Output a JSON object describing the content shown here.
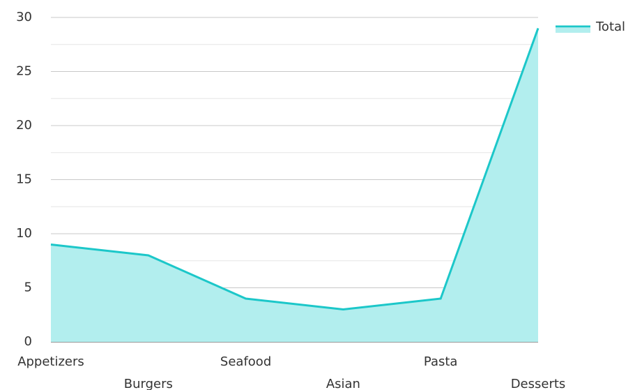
{
  "chart_data": {
    "type": "area",
    "categories": [
      "Appetizers",
      "Burgers",
      "Seafood",
      "Asian",
      "Pasta",
      "Desserts"
    ],
    "series": [
      {
        "name": "Total",
        "color": "#1cc7c9",
        "fill": "#b2eeee",
        "values": [
          9,
          8,
          4,
          3,
          4,
          29
        ]
      }
    ],
    "ylim": [
      0,
      30
    ],
    "yticks": [
      0,
      5,
      10,
      15,
      20,
      25,
      30
    ],
    "grid": true,
    "legend": "top-right"
  }
}
